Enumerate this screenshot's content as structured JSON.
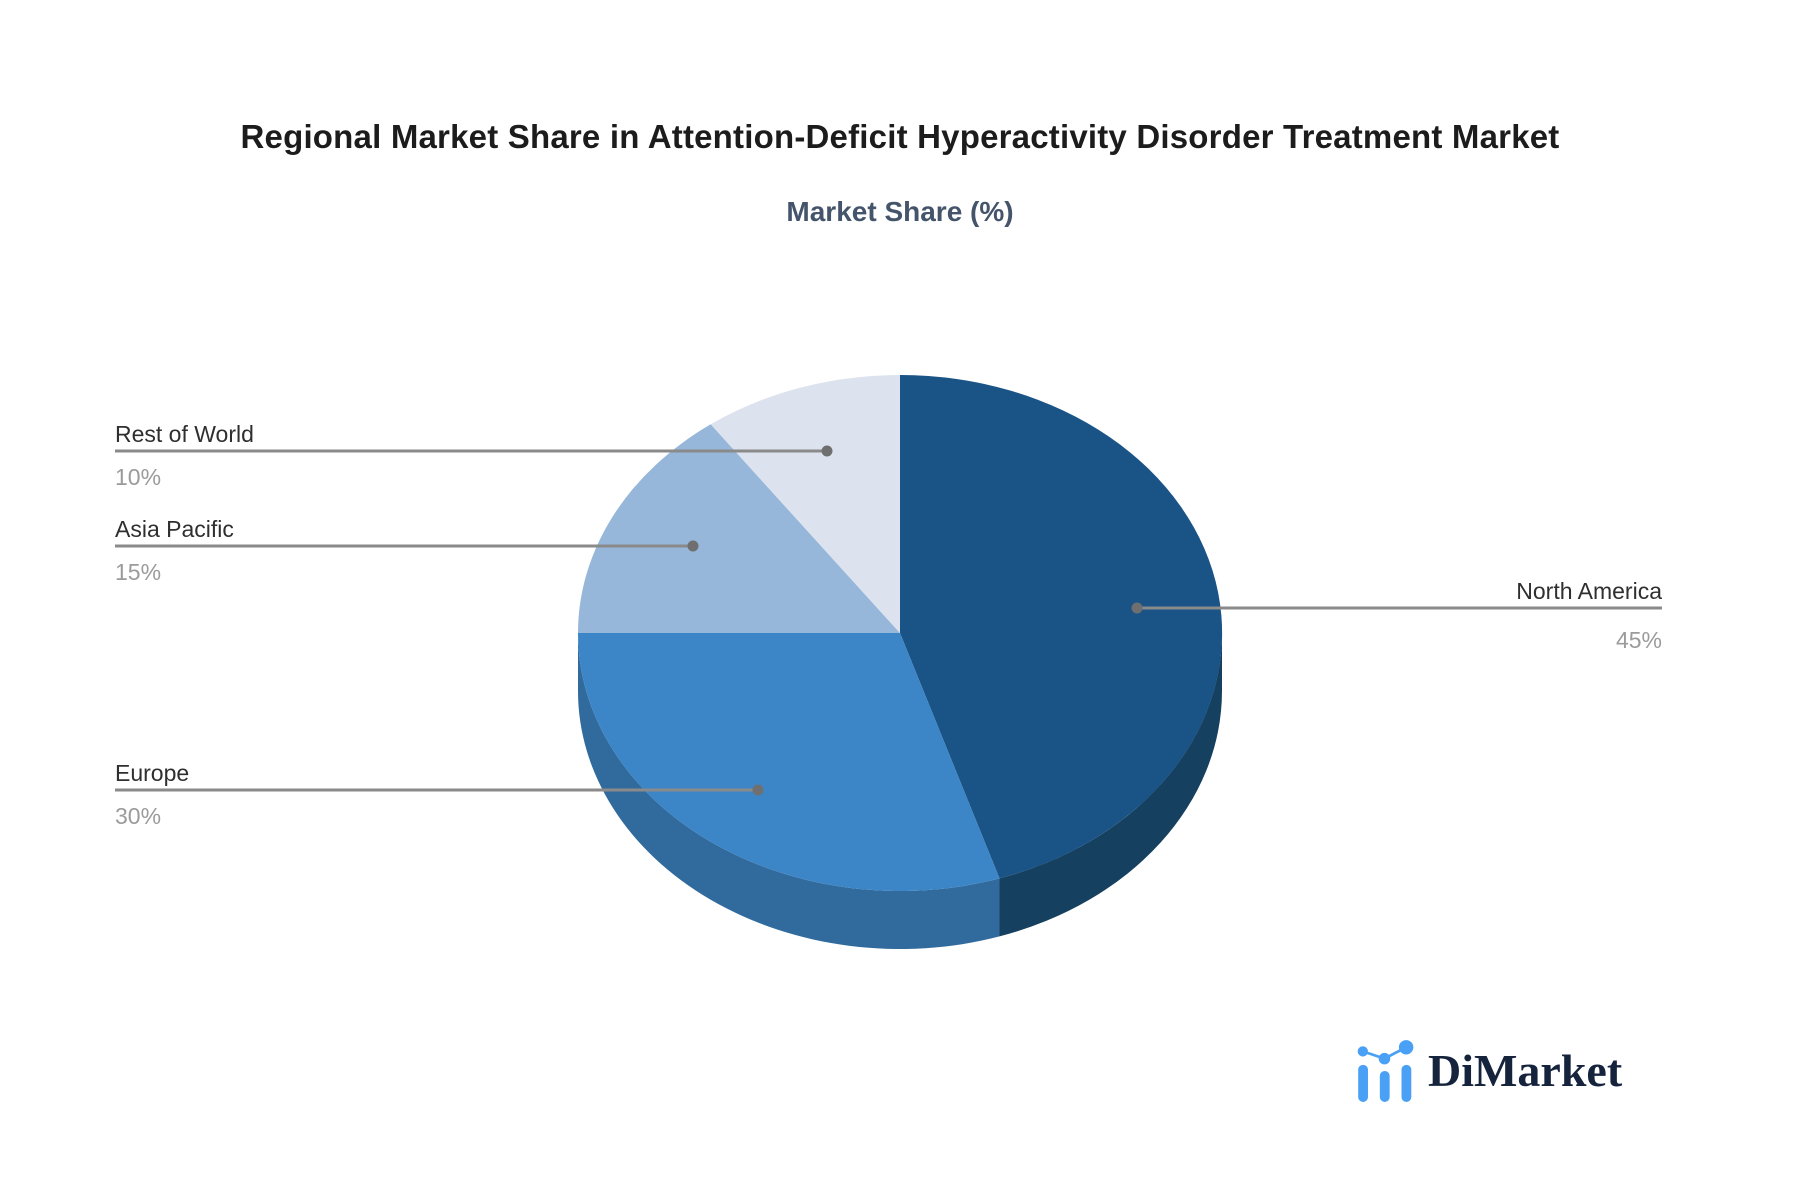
{
  "chart_data": {
    "type": "pie",
    "title": "Regional Market Share in Attention-Deficit Hyperactivity Disorder Treatment Market",
    "subtitle": "Market Share (%)",
    "categories": [
      "North America",
      "Europe",
      "Asia Pacific",
      "Rest of World"
    ],
    "values": [
      45,
      30,
      15,
      10
    ],
    "unit": "%",
    "percent_labels": [
      "45%",
      "30%",
      "15%",
      "10%"
    ],
    "direction": "clockwise",
    "start_angle": "12-oclock",
    "style": "3d-pie",
    "legend_position": "callout-labels",
    "slice_colors": [
      "#1a5385",
      "#3c86c8",
      "#96b7da",
      "#dde3ee"
    ],
    "side_colors": [
      "#16405f",
      "#316b9d",
      "#7a9cc0",
      "#bcc7d8"
    ],
    "label_text_color": "#2f2f2f",
    "percent_text_color": "#9b9b9b",
    "leader_line_color": "#8a8a8a"
  },
  "branding": {
    "logo_text": "DiMarket",
    "logo_text_color": "#15233c",
    "logo_icon": "bar-line-chart-icon",
    "logo_icon_color": "#4aa0f5"
  }
}
